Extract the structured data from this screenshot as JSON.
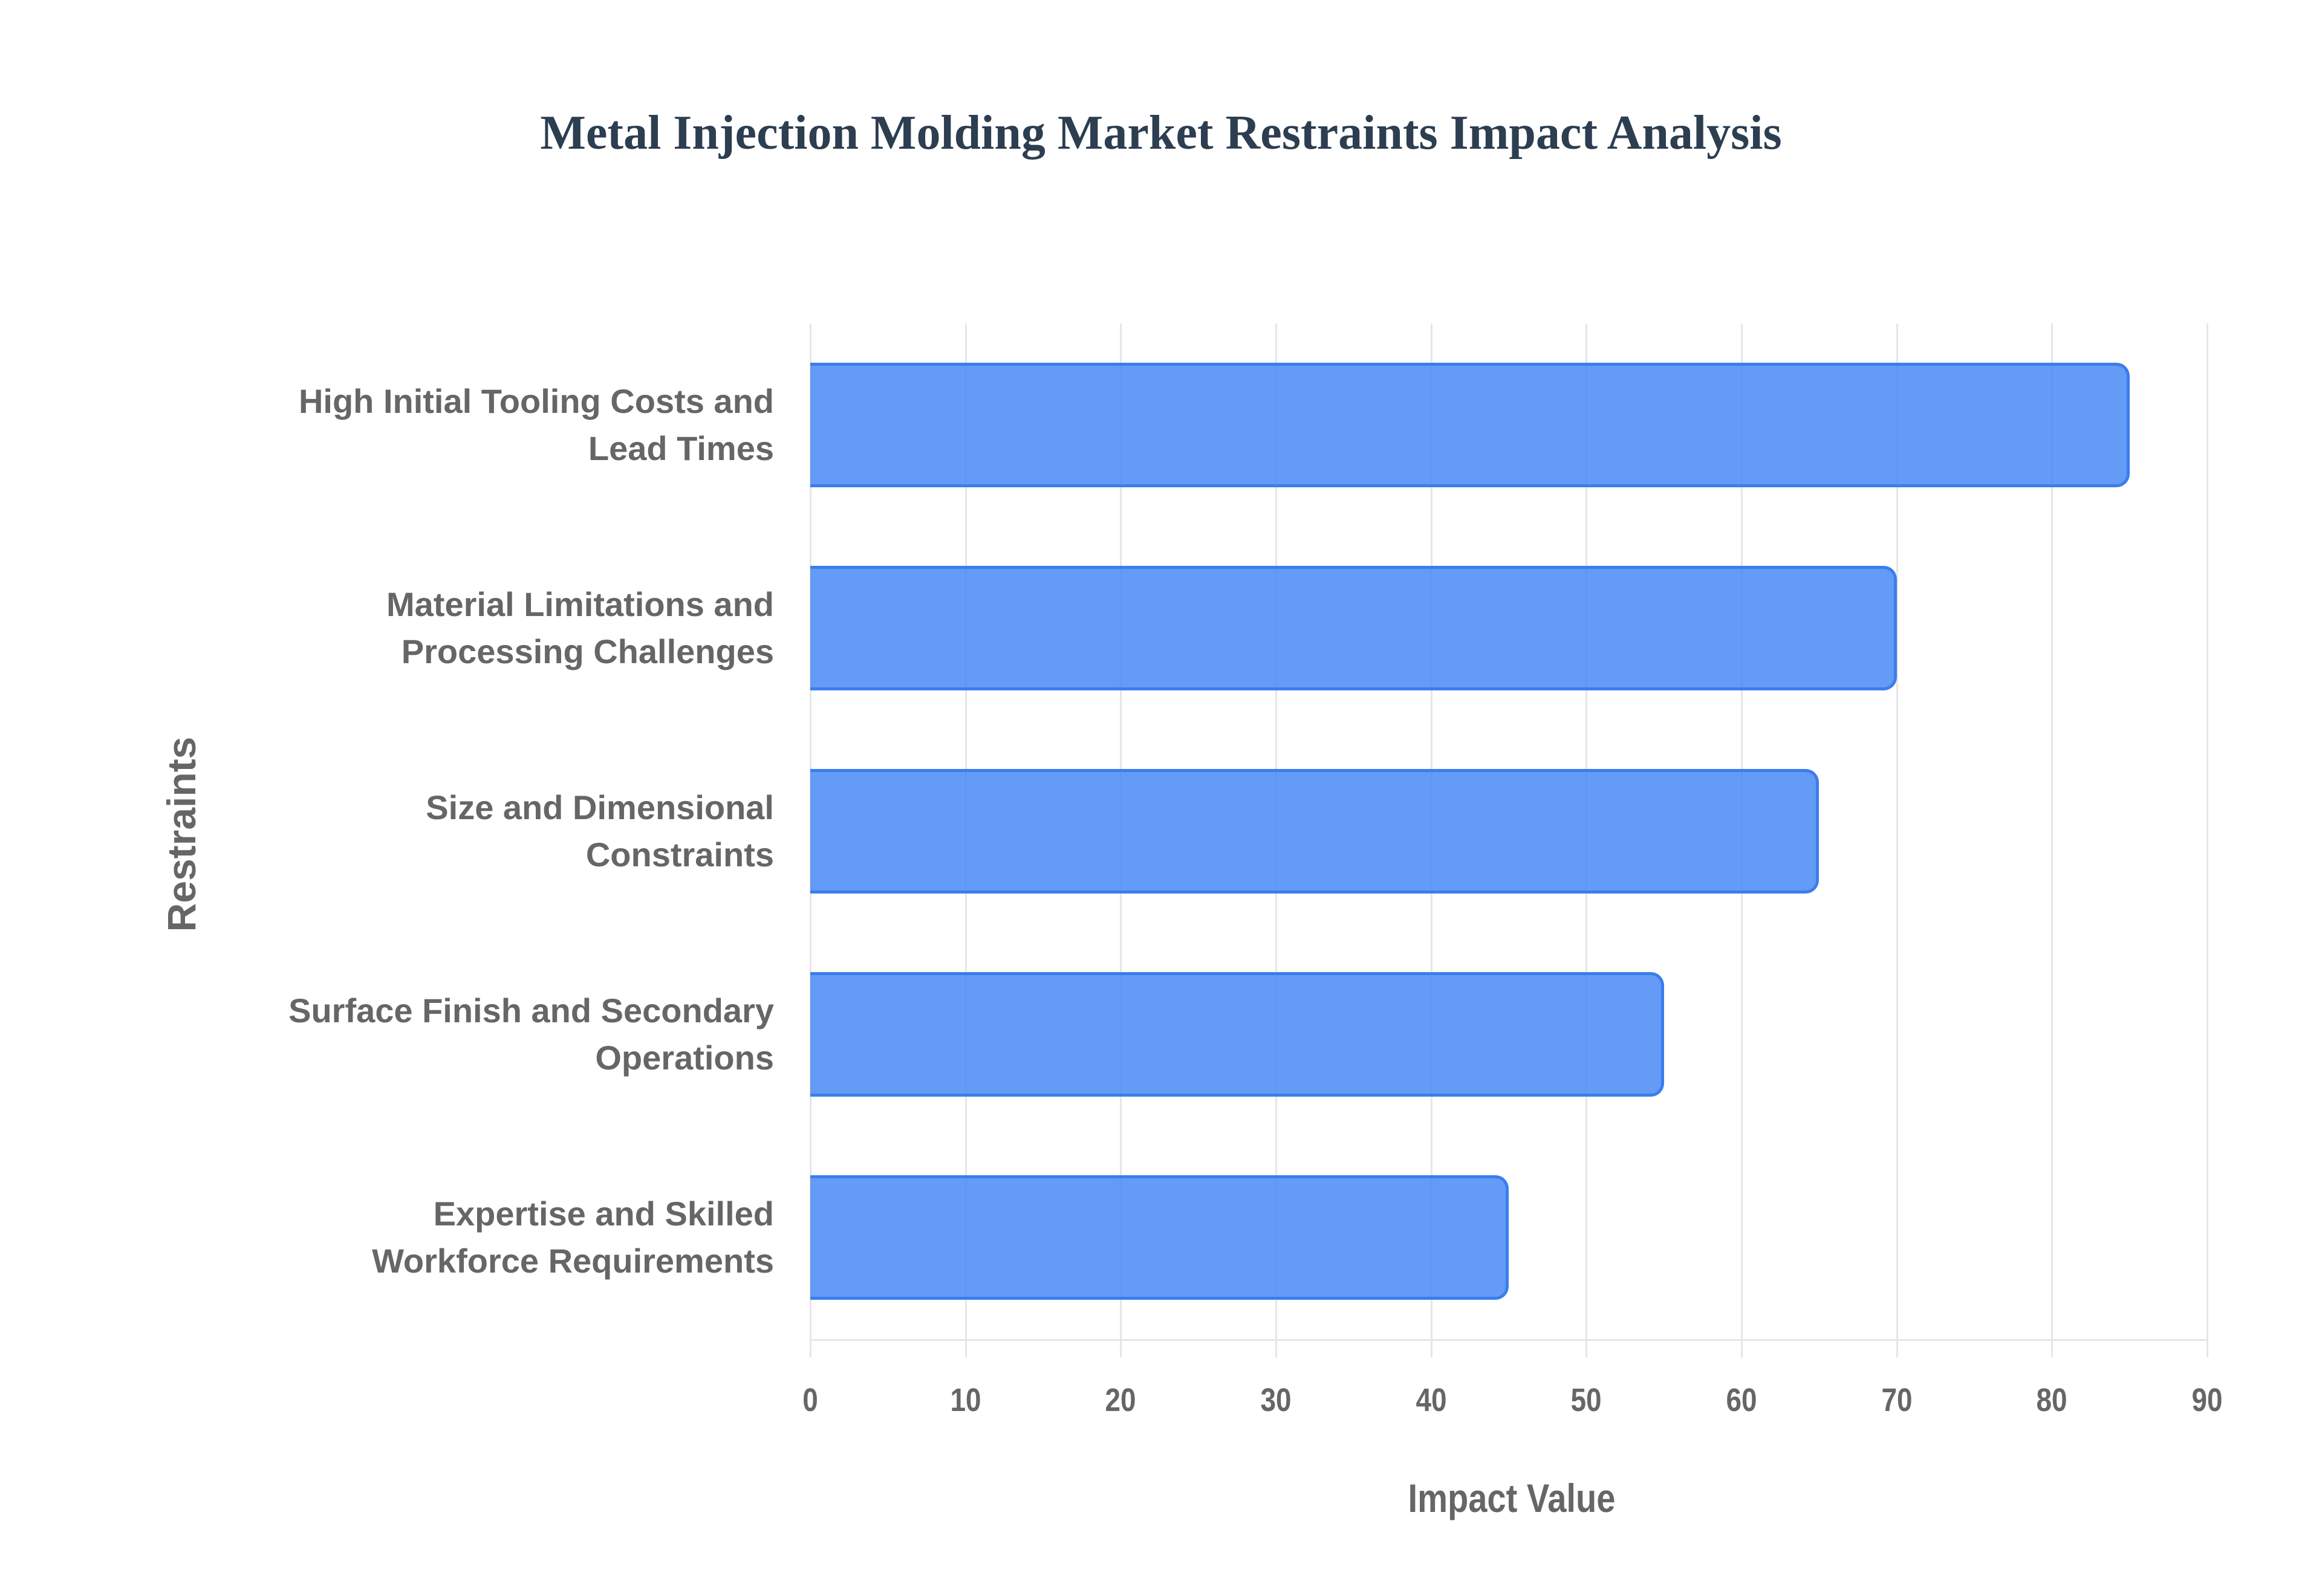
{
  "chart_data": {
    "type": "bar",
    "orientation": "horizontal",
    "title": "Metal Injection Molding Market Restraints Impact Analysis",
    "xlabel": "Impact Value",
    "ylabel": "Restraints",
    "categories": [
      "High Initial Tooling Costs and Lead Times",
      "Material Limitations and Processing Challenges",
      "Size and Dimensional Constraints",
      "Surface Finish and Secondary Operations",
      "Expertise and Skilled Workforce Requirements"
    ],
    "category_lines": [
      [
        "High Initial Tooling Costs and",
        "Lead Times"
      ],
      [
        "Material Limitations and",
        "Processing Challenges"
      ],
      [
        "Size and Dimensional",
        "Constraints"
      ],
      [
        "Surface Finish and Secondary",
        "Operations"
      ],
      [
        "Expertise and Skilled",
        "Workforce Requirements"
      ]
    ],
    "values": [
      85,
      70,
      65,
      55,
      45
    ],
    "xlim": [
      0,
      90
    ],
    "xticks": [
      "0",
      "10",
      "20",
      "30",
      "40",
      "50",
      "60",
      "70",
      "80",
      "90"
    ],
    "grid": true,
    "legend": null,
    "colors": {
      "bar_fill": "#6199f5",
      "bar_border": "#3b7ded"
    }
  }
}
